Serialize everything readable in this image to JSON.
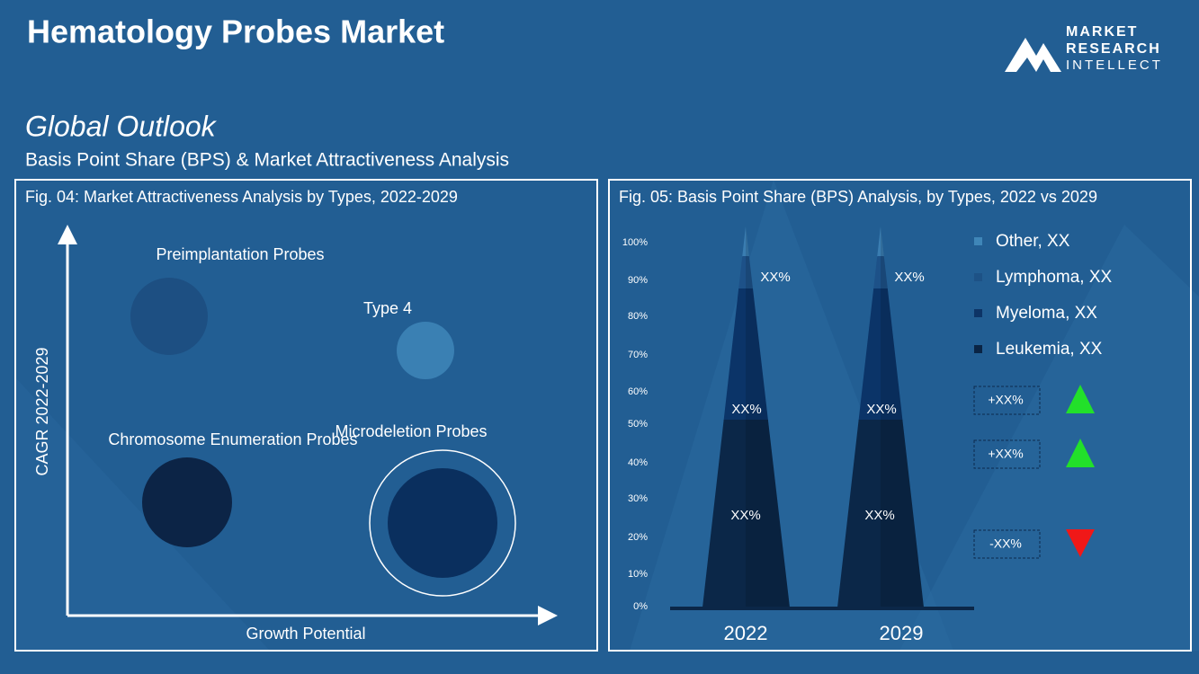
{
  "header": {
    "title": "Hematology Probes Market",
    "logo": [
      "MARKET",
      "RESEARCH",
      "INTELLECT"
    ]
  },
  "section": {
    "title": "Global Outlook",
    "subtitle": "Basis Point Share (BPS) & Market Attractiveness  Analysis"
  },
  "fig04": {
    "title": "Fig. 04: Market Attractiveness Analysis by Types, 2022-2029",
    "y_axis": "CAGR 2022-2029",
    "x_axis": "Growth Potential",
    "bubbles": [
      "Preimplantation Probes",
      "Type 4",
      "Chromosome Enumeration Probes",
      "Microdeletion Probes"
    ]
  },
  "fig05": {
    "title": "Fig. 05: Basis Point Share (BPS) Analysis, by Types, 2022 vs 2029",
    "axis_labels": [
      "100%",
      "90%",
      "80%",
      "70%",
      "60%",
      "50%",
      "40%",
      "30%",
      "20%",
      "10%",
      "0%"
    ],
    "columns": [
      {
        "label": "2022",
        "segments": [
          "XX%",
          "XX%",
          "XX%"
        ]
      },
      {
        "label": "2029",
        "segments": [
          "XX%",
          "XX%",
          "XX%"
        ]
      }
    ],
    "legend": [
      "Other, XX",
      "Lymphoma, XX",
      "Myeloma, XX",
      "Leukemia, XX"
    ],
    "changes": [
      "+XX%",
      "+XX%",
      "-XX%"
    ]
  }
}
